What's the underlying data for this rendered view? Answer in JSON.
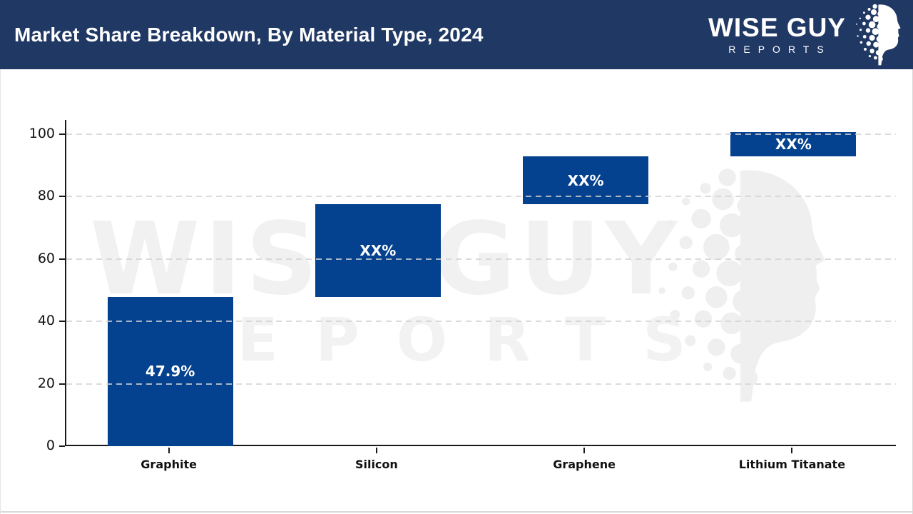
{
  "header": {
    "title": "Market Share Breakdown, By Material Type, 2024",
    "bg_color": "#203864",
    "logo": {
      "line1": "WISE GUY",
      "line2": "REPORTS"
    }
  },
  "watermark": {
    "line1": "WISE GUY",
    "line2": "REPORTS"
  },
  "chart_data": {
    "type": "bar",
    "subtype": "stacked-waterfall-percentage",
    "title": "Market Share Breakdown, By Material Type, 2024",
    "categories": [
      "Graphite",
      "Silicon",
      "Graphene",
      "Lithium Titanate"
    ],
    "segments": [
      {
        "category": "Graphite",
        "start": 0,
        "end": 47.9,
        "label": "47.9%"
      },
      {
        "category": "Silicon",
        "start": 47.9,
        "end": 77.5,
        "label": "XX%"
      },
      {
        "category": "Graphene",
        "start": 77.5,
        "end": 92.8,
        "label": "XX%"
      },
      {
        "category": "Lithium Titanate",
        "start": 92.8,
        "end": 100.5,
        "label": "XX%"
      }
    ],
    "yticks": [
      0,
      20,
      40,
      60,
      80,
      100
    ],
    "ylim": [
      0,
      104.5
    ],
    "xlabel": "",
    "ylabel": "",
    "bar_color": "#04418E",
    "grid": "horizontal-dashed",
    "legend": "none"
  }
}
